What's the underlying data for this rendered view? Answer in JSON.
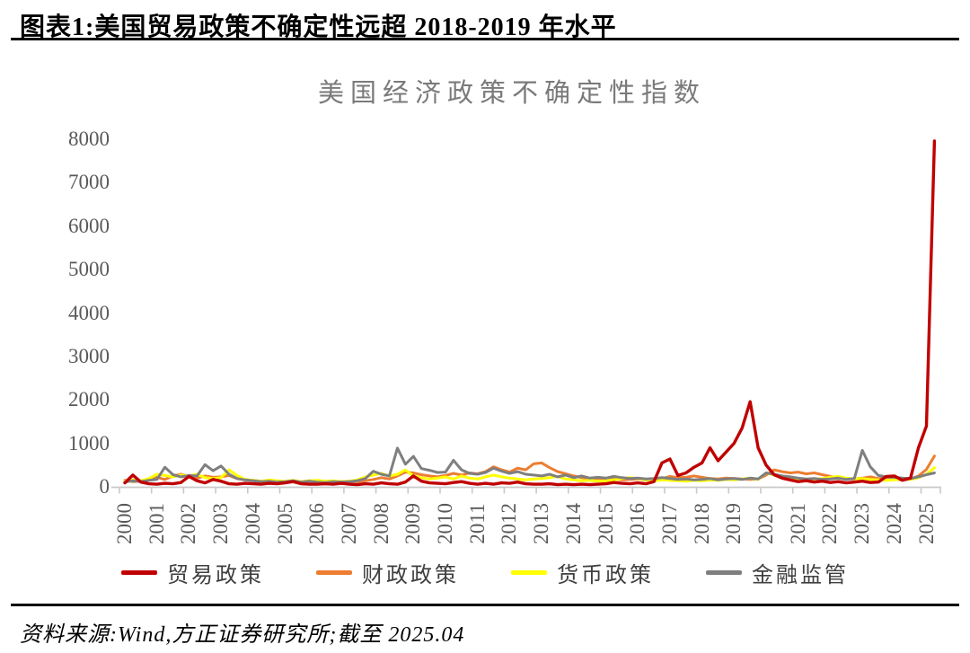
{
  "header": {
    "title": "图表1:美国贸易政策不确定性远超 2018-2019 年水平"
  },
  "footer": {
    "source": "资料来源:Wind,方正证券研究所;截至 2025.04"
  },
  "chart_data": {
    "type": "line",
    "title": "美国经济政策不确定性指数",
    "xlabel": "",
    "ylabel": "",
    "grid": false,
    "legend_position": "bottom",
    "x_start": 2000,
    "x_step": 0.25,
    "x_end": 2025.25,
    "x_tick_labels": [
      "2000",
      "2001",
      "2002",
      "2003",
      "2004",
      "2005",
      "2006",
      "2007",
      "2008",
      "2009",
      "2010",
      "2011",
      "2012",
      "2013",
      "2014",
      "2015",
      "2016",
      "2017",
      "2018",
      "2019",
      "2020",
      "2021",
      "2022",
      "2023",
      "2024",
      "2025"
    ],
    "y_ticks": [
      0,
      1000,
      2000,
      3000,
      4000,
      5000,
      6000,
      7000,
      8000
    ],
    "ylim": [
      0,
      8000
    ],
    "series": [
      {
        "name": "贸易政策",
        "key": "trade-policy",
        "color": "#C00000",
        "values": [
          90,
          270,
          110,
          70,
          60,
          80,
          70,
          100,
          240,
          140,
          90,
          170,
          130,
          70,
          60,
          80,
          70,
          60,
          80,
          70,
          90,
          120,
          70,
          60,
          60,
          70,
          60,
          80,
          60,
          50,
          70,
          60,
          90,
          70,
          60,
          110,
          250,
          130,
          90,
          80,
          70,
          100,
          120,
          80,
          60,
          80,
          60,
          90,
          80,
          110,
          70,
          60,
          60,
          70,
          50,
          60,
          50,
          60,
          50,
          60,
          70,
          100,
          80,
          70,
          90,
          70,
          120,
          550,
          640,
          260,
          320,
          450,
          550,
          900,
          600,
          800,
          1000,
          1350,
          1960,
          900,
          500,
          280,
          200,
          160,
          120,
          140,
          110,
          130,
          100,
          120,
          90,
          110,
          130,
          100,
          110,
          240,
          250,
          150,
          200,
          900,
          1400,
          7960
        ]
      },
      {
        "name": "财政政策",
        "key": "fiscal-policy",
        "color": "#ED7D31",
        "values": [
          150,
          120,
          130,
          170,
          220,
          170,
          250,
          290,
          240,
          200,
          250,
          220,
          230,
          260,
          190,
          160,
          150,
          130,
          140,
          120,
          110,
          130,
          120,
          140,
          120,
          110,
          130,
          120,
          130,
          120,
          140,
          170,
          210,
          180,
          250,
          340,
          320,
          280,
          250,
          230,
          260,
          310,
          270,
          320,
          300,
          350,
          460,
          390,
          340,
          430,
          390,
          530,
          550,
          440,
          350,
          300,
          250,
          210,
          180,
          190,
          170,
          180,
          160,
          170,
          180,
          160,
          170,
          190,
          240,
          210,
          220,
          250,
          220,
          190,
          180,
          200,
          190,
          180,
          170,
          180,
          270,
          390,
          350,
          320,
          340,
          300,
          320,
          280,
          240,
          200,
          190,
          180,
          200,
          230,
          190,
          180,
          170,
          160,
          180,
          250,
          400,
          710
        ]
      },
      {
        "name": "货币政策",
        "key": "monetary-policy",
        "color": "#FFFF00",
        "values": [
          130,
          160,
          140,
          190,
          290,
          260,
          230,
          270,
          250,
          290,
          210,
          190,
          210,
          390,
          260,
          170,
          150,
          130,
          160,
          140,
          130,
          150,
          120,
          140,
          150,
          130,
          140,
          120,
          130,
          160,
          230,
          270,
          310,
          250,
          290,
          390,
          250,
          210,
          180,
          200,
          230,
          180,
          250,
          200,
          180,
          230,
          270,
          230,
          200,
          180,
          160,
          180,
          190,
          210,
          240,
          180,
          160,
          140,
          150,
          130,
          140,
          160,
          190,
          210,
          190,
          160,
          140,
          160,
          150,
          140,
          130,
          150,
          140,
          160,
          150,
          170,
          160,
          180,
          200,
          170,
          320,
          270,
          220,
          200,
          180,
          160,
          170,
          190,
          220,
          240,
          200,
          180,
          190,
          170,
          160,
          150,
          160,
          180,
          170,
          210,
          290,
          440
        ]
      },
      {
        "name": "金融监管",
        "key": "financial-regulation",
        "color": "#7F7F7F",
        "values": [
          110,
          140,
          120,
          150,
          170,
          450,
          280,
          230,
          260,
          250,
          510,
          370,
          480,
          290,
          190,
          160,
          140,
          120,
          130,
          110,
          120,
          140,
          110,
          130,
          110,
          100,
          120,
          110,
          120,
          140,
          190,
          360,
          290,
          250,
          890,
          520,
          700,
          420,
          380,
          330,
          340,
          610,
          390,
          310,
          290,
          330,
          430,
          360,
          310,
          350,
          290,
          270,
          250,
          290,
          230,
          270,
          210,
          250,
          200,
          220,
          200,
          240,
          210,
          190,
          200,
          180,
          190,
          210,
          190,
          170,
          180,
          160,
          170,
          190,
          160,
          180,
          190,
          170,
          200,
          180,
          320,
          290,
          250,
          230,
          200,
          180,
          190,
          170,
          180,
          200,
          170,
          190,
          840,
          460,
          260,
          230,
          220,
          200,
          190,
          230,
          280,
          320
        ]
      }
    ]
  }
}
